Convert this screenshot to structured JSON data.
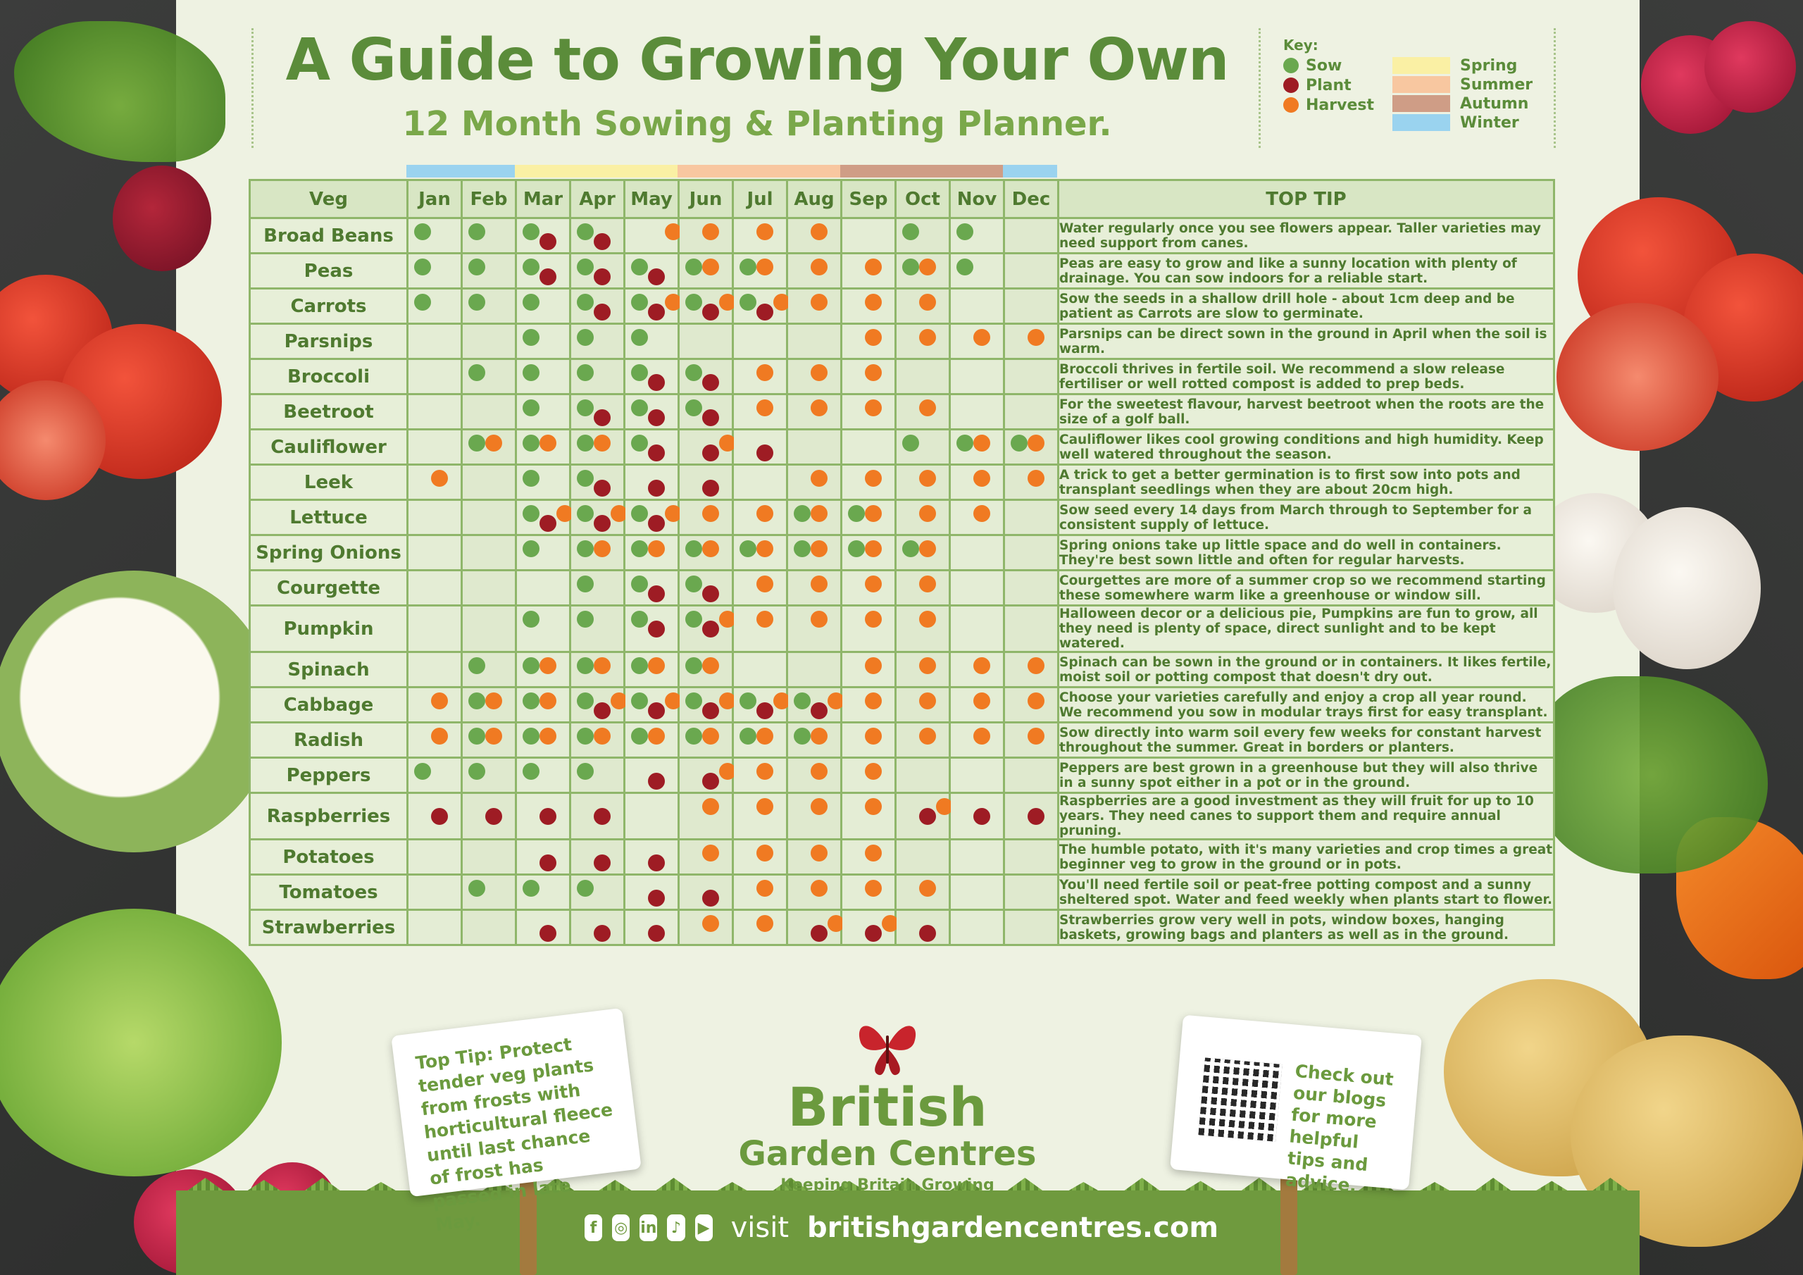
{
  "header": {
    "title": "A Guide to Growing Your Own",
    "subtitle": "12 Month Sowing & Planting Planner."
  },
  "key": {
    "title": "Key:",
    "actions": [
      {
        "label": "Sow",
        "color": "#6aa84f"
      },
      {
        "label": "Plant",
        "color": "#9e1c24"
      },
      {
        "label": "Harvest",
        "color": "#f07a22"
      }
    ],
    "seasons": [
      {
        "label": "Spring",
        "color": "#faf0a4"
      },
      {
        "label": "Summer",
        "color": "#f8c7a0"
      },
      {
        "label": "Autumn",
        "color": "#cf9d86"
      },
      {
        "label": "Winter",
        "color": "#9ad3ef"
      }
    ]
  },
  "table": {
    "veg_header": "Veg",
    "tip_header": "TOP TIP",
    "months": [
      "Jan",
      "Feb",
      "Mar",
      "Apr",
      "May",
      "Jun",
      "Jul",
      "Aug",
      "Sep",
      "Oct",
      "Nov",
      "Dec"
    ],
    "rows": [
      {
        "veg": "Broad Beans",
        "tip": "Water regularly once you see flowers appear. Taller varieties may need support from canes.",
        "cells": [
          [
            "S"
          ],
          [
            "S"
          ],
          [
            "S",
            "P"
          ],
          [
            "S",
            "P"
          ],
          [
            "",
            "",
            "H"
          ],
          [
            "",
            "H"
          ],
          [
            "",
            "H"
          ],
          [
            "",
            "H"
          ],
          [],
          [
            "S"
          ],
          [
            "S"
          ],
          []
        ]
      },
      {
        "veg": "Peas",
        "tip": "Peas are easy to grow and like a sunny location with plenty of drainage. You can sow indoors for a reliable start.",
        "cells": [
          [
            "S"
          ],
          [
            "S"
          ],
          [
            "S",
            "P"
          ],
          [
            "S",
            "P"
          ],
          [
            "S",
            "P"
          ],
          [
            "S",
            "H"
          ],
          [
            "S",
            "H"
          ],
          [
            "",
            "H"
          ],
          [
            "",
            "H"
          ],
          [
            "S",
            "H"
          ],
          [
            "S"
          ],
          []
        ]
      },
      {
        "veg": "Carrots",
        "tip": "Sow the seeds in a shallow drill hole - about 1cm deep and be patient as Carrots are slow to germinate.",
        "cells": [
          [
            "S"
          ],
          [
            "S"
          ],
          [
            "S"
          ],
          [
            "S",
            "P"
          ],
          [
            "S",
            "P",
            "H"
          ],
          [
            "S",
            "P",
            "H"
          ],
          [
            "S",
            "P",
            "H"
          ],
          [
            "",
            "H"
          ],
          [
            "",
            "H"
          ],
          [
            "",
            "H"
          ],
          [],
          []
        ]
      },
      {
        "veg": "Parsnips",
        "tip": "Parsnips can be direct sown in the ground in April when the soil is warm.",
        "cells": [
          [],
          [],
          [
            "S"
          ],
          [
            "S"
          ],
          [
            "S"
          ],
          [],
          [],
          [],
          [
            "",
            "H"
          ],
          [
            "",
            "H"
          ],
          [
            "",
            "H"
          ],
          [
            "",
            "H"
          ]
        ]
      },
      {
        "veg": "Broccoli",
        "tip": "Broccoli thrives in fertile soil. We recommend a slow release fertiliser or well rotted compost is added to prep beds.",
        "cells": [
          [],
          [
            "S"
          ],
          [
            "S"
          ],
          [
            "S"
          ],
          [
            "S",
            "P"
          ],
          [
            "S",
            "P"
          ],
          [
            "",
            "H"
          ],
          [
            "",
            "H"
          ],
          [
            "",
            "H"
          ],
          [],
          [],
          []
        ]
      },
      {
        "veg": "Beetroot",
        "tip": "For the sweetest flavour, harvest beetroot when the roots are the size of a golf ball.",
        "cells": [
          [],
          [],
          [
            "S"
          ],
          [
            "S",
            "P"
          ],
          [
            "S",
            "P"
          ],
          [
            "S",
            "P"
          ],
          [
            "",
            "H"
          ],
          [
            "",
            "H"
          ],
          [
            "",
            "H"
          ],
          [
            "",
            "H"
          ],
          [],
          []
        ]
      },
      {
        "veg": "Cauliflower",
        "tip": "Cauliflower likes cool growing conditions and high humidity. Keep well watered throughout the season.",
        "cells": [
          [],
          [
            "S",
            "H"
          ],
          [
            "S",
            "H"
          ],
          [
            "S",
            "H"
          ],
          [
            "S",
            "P"
          ],
          [
            "",
            "P",
            "H"
          ],
          [
            "",
            "P"
          ],
          [],
          [],
          [
            "S"
          ],
          [
            "S",
            "H"
          ],
          [
            "S",
            "H"
          ]
        ]
      },
      {
        "veg": "Leek",
        "tip": "A trick to get a better germination is to first sow into pots and transplant seedlings when they are about 20cm high.",
        "cells": [
          [
            "",
            "H"
          ],
          [],
          [
            "S"
          ],
          [
            "S",
            "P"
          ],
          [
            "",
            "P"
          ],
          [
            "",
            "P"
          ],
          [],
          [
            "",
            "H"
          ],
          [
            "",
            "H"
          ],
          [
            "",
            "H"
          ],
          [
            "",
            "H"
          ],
          [
            "",
            "H"
          ]
        ]
      },
      {
        "veg": "Lettuce",
        "tip": "Sow seed every 14 days from March through to September for a consistent supply of lettuce.",
        "cells": [
          [],
          [],
          [
            "S",
            "P",
            "H"
          ],
          [
            "S",
            "P",
            "H"
          ],
          [
            "S",
            "P",
            "H"
          ],
          [
            "",
            "H"
          ],
          [
            "",
            "H"
          ],
          [
            "S",
            "H"
          ],
          [
            "S",
            "H"
          ],
          [
            "",
            "H"
          ],
          [
            "",
            "H"
          ],
          []
        ]
      },
      {
        "veg": "Spring Onions",
        "tip": "Spring onions take up little space and do well in containers. They're best sown little and often for regular harvests.",
        "cells": [
          [],
          [],
          [
            "S"
          ],
          [
            "S",
            "H"
          ],
          [
            "S",
            "H"
          ],
          [
            "S",
            "H"
          ],
          [
            "S",
            "H"
          ],
          [
            "S",
            "H"
          ],
          [
            "S",
            "H"
          ],
          [
            "S",
            "H"
          ],
          [],
          []
        ]
      },
      {
        "veg": "Courgette",
        "tip": "Courgettes are more of a summer crop so we recommend starting these somewhere warm like a greenhouse or window sill.",
        "cells": [
          [],
          [],
          [],
          [
            "S"
          ],
          [
            "S",
            "P"
          ],
          [
            "S",
            "P"
          ],
          [
            "",
            "H"
          ],
          [
            "",
            "H"
          ],
          [
            "",
            "H"
          ],
          [
            "",
            "H"
          ],
          [],
          []
        ]
      },
      {
        "veg": "Pumpkin",
        "tip": "Halloween decor or a delicious pie, Pumpkins are fun to grow, all they need is plenty of space, direct sunlight and to be kept watered.",
        "cells": [
          [],
          [],
          [
            "S"
          ],
          [
            "S"
          ],
          [
            "S",
            "P"
          ],
          [
            "S",
            "P",
            "H"
          ],
          [
            "",
            "H"
          ],
          [
            "",
            "H"
          ],
          [
            "",
            "H"
          ],
          [
            "",
            "H"
          ],
          [],
          []
        ]
      },
      {
        "veg": "Spinach",
        "tip": "Spinach can be sown in the ground or in containers. It likes fertile, moist soil or potting compost that doesn't dry out.",
        "cells": [
          [],
          [
            "S"
          ],
          [
            "S",
            "H"
          ],
          [
            "S",
            "H"
          ],
          [
            "S",
            "H"
          ],
          [
            "S",
            "H"
          ],
          [],
          [],
          [
            "",
            "H"
          ],
          [
            "",
            "H"
          ],
          [
            "",
            "H"
          ],
          [
            "",
            "H"
          ]
        ]
      },
      {
        "veg": "Cabbage",
        "tip": "Choose your varieties carefully and enjoy a crop all year round. We recommend you sow in modular trays first for easy transplant.",
        "cells": [
          [
            "",
            "H"
          ],
          [
            "S",
            "H"
          ],
          [
            "S",
            "H"
          ],
          [
            "S",
            "P",
            "H"
          ],
          [
            "S",
            "P",
            "H"
          ],
          [
            "S",
            "P",
            "H"
          ],
          [
            "S",
            "P",
            "H"
          ],
          [
            "S",
            "P",
            "H"
          ],
          [
            "",
            "H"
          ],
          [
            "",
            "H"
          ],
          [
            "",
            "H"
          ],
          [
            "",
            "H"
          ]
        ]
      },
      {
        "veg": "Radish",
        "tip": "Sow directly into warm soil every few weeks for constant harvest throughout the summer. Great in borders or planters.",
        "cells": [
          [
            "",
            "H"
          ],
          [
            "S",
            "H"
          ],
          [
            "S",
            "H"
          ],
          [
            "S",
            "H"
          ],
          [
            "S",
            "H"
          ],
          [
            "S",
            "H"
          ],
          [
            "S",
            "H"
          ],
          [
            "S",
            "H"
          ],
          [
            "",
            "H"
          ],
          [
            "",
            "H"
          ],
          [
            "",
            "H"
          ],
          [
            "",
            "H"
          ]
        ]
      },
      {
        "veg": "Peppers",
        "tip": "Peppers are best grown in a greenhouse but they will also thrive in a sunny spot either in a pot or in the ground.",
        "cells": [
          [
            "S"
          ],
          [
            "S"
          ],
          [
            "S"
          ],
          [
            "S"
          ],
          [
            "",
            "P"
          ],
          [
            "",
            "P",
            "H"
          ],
          [
            "",
            "H"
          ],
          [
            "",
            "H"
          ],
          [
            "",
            "H"
          ],
          [],
          [],
          []
        ]
      },
      {
        "veg": "Raspberries",
        "tip": "Raspberries are a good investment as they will fruit for up to 10 years. They need canes to support them and require annual pruning.",
        "cells": [
          [
            "",
            "P"
          ],
          [
            "",
            "P"
          ],
          [
            "",
            "P"
          ],
          [
            "",
            "P"
          ],
          [],
          [
            "",
            "H"
          ],
          [
            "",
            "H"
          ],
          [
            "",
            "H"
          ],
          [
            "",
            "H"
          ],
          [
            "",
            "P",
            "H"
          ],
          [
            "",
            "P"
          ],
          [
            "",
            "P"
          ]
        ]
      },
      {
        "veg": "Potatoes",
        "tip": "The humble potato, with it's many varieties and crop times a great beginner veg to grow in the ground or in pots.",
        "cells": [
          [],
          [],
          [
            "",
            "P"
          ],
          [
            "",
            "P"
          ],
          [
            "",
            "P"
          ],
          [
            "",
            "H"
          ],
          [
            "",
            "H"
          ],
          [
            "",
            "H"
          ],
          [
            "",
            "H"
          ],
          [],
          [],
          []
        ]
      },
      {
        "veg": "Tomatoes",
        "tip": "You'll need fertile soil or peat-free potting compost and a sunny sheltered spot. Water and feed weekly when plants start to flower.",
        "cells": [
          [],
          [
            "S"
          ],
          [
            "S"
          ],
          [
            "S"
          ],
          [
            "",
            "P"
          ],
          [
            "",
            "P"
          ],
          [
            "",
            "H"
          ],
          [
            "",
            "H"
          ],
          [
            "",
            "H"
          ],
          [
            "",
            "H"
          ],
          [],
          []
        ]
      },
      {
        "veg": "Strawberries",
        "tip": "Strawberries grow very well in pots, window boxes, hanging baskets, growing bags and planters as well as in the ground.",
        "cells": [
          [],
          [],
          [
            "",
            "P"
          ],
          [
            "",
            "P"
          ],
          [
            "",
            "P"
          ],
          [
            "",
            "H"
          ],
          [
            "",
            "H"
          ],
          [
            "",
            "P",
            "H"
          ],
          [
            "",
            "P",
            "H"
          ],
          [
            "",
            "P"
          ],
          [],
          []
        ]
      }
    ]
  },
  "season_bar": [
    {
      "season": "Winter",
      "from": 0,
      "to": 2,
      "color": "#9ad3ef"
    },
    {
      "season": "Spring",
      "from": 2,
      "to": 5,
      "color": "#faf0a4"
    },
    {
      "season": "Summer",
      "from": 5,
      "to": 8,
      "color": "#f8c7a0"
    },
    {
      "season": "Autumn",
      "from": 8,
      "to": 11,
      "color": "#cf9d86"
    },
    {
      "season": "Winter",
      "from": 11,
      "to": 12,
      "color": "#9ad3ef"
    }
  ],
  "notes": {
    "left": "Top Tip: Protect tender veg plants from frosts with horticultural fleece until last chance of frost has passed in late May.",
    "right": "Check out our blogs for more helpful tips and advice."
  },
  "brand": {
    "line1": "British",
    "line2": "Garden Centres",
    "tagline": "Keeping Britain Growing",
    "accent": "#c8242c"
  },
  "footer": {
    "social_icons": [
      "facebook-icon",
      "instagram-icon",
      "linkedin-icon",
      "tiktok-icon",
      "youtube-icon"
    ],
    "social_glyphs": [
      "f",
      "◎",
      "in",
      "♪",
      "▶"
    ],
    "visit_prefix": "visit",
    "url": "britishgardencentres.com"
  }
}
